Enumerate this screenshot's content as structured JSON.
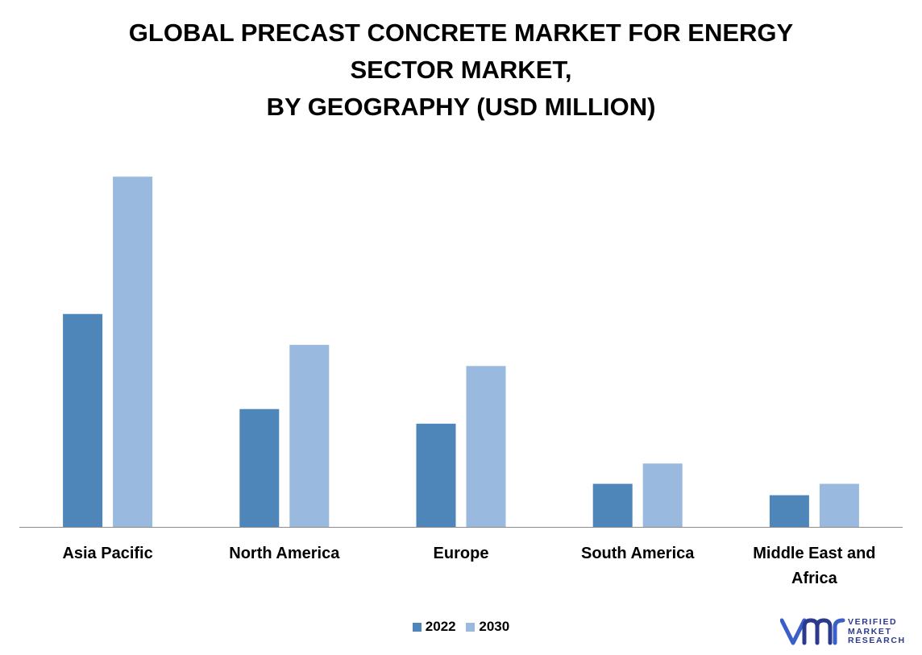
{
  "chart_data": {
    "type": "bar",
    "title_lines": [
      "GLOBAL PRECAST CONCRETE MARKET FOR ENERGY",
      "SECTOR MARKET,",
      "BY GEOGRAPHY (USD MILLION)"
    ],
    "categories": [
      [
        "Asia Pacific"
      ],
      [
        "North America"
      ],
      [
        "Europe"
      ],
      [
        "South America"
      ],
      [
        "Middle East and",
        "Africa"
      ]
    ],
    "series": [
      {
        "name": "2022",
        "color": "#4f86ba",
        "values": [
          262,
          145,
          127,
          53,
          39
        ]
      },
      {
        "name": "2030",
        "color": "#9ab9de",
        "values": [
          431,
          224,
          198,
          78,
          53
        ]
      }
    ],
    "ylim": [
      0,
      460
    ],
    "grid": false,
    "legend_position": "bottom-center"
  },
  "logo": {
    "lines": [
      "VERIFIED",
      "MARKET",
      "RESEARCH"
    ],
    "color": "#2b3a8c"
  }
}
